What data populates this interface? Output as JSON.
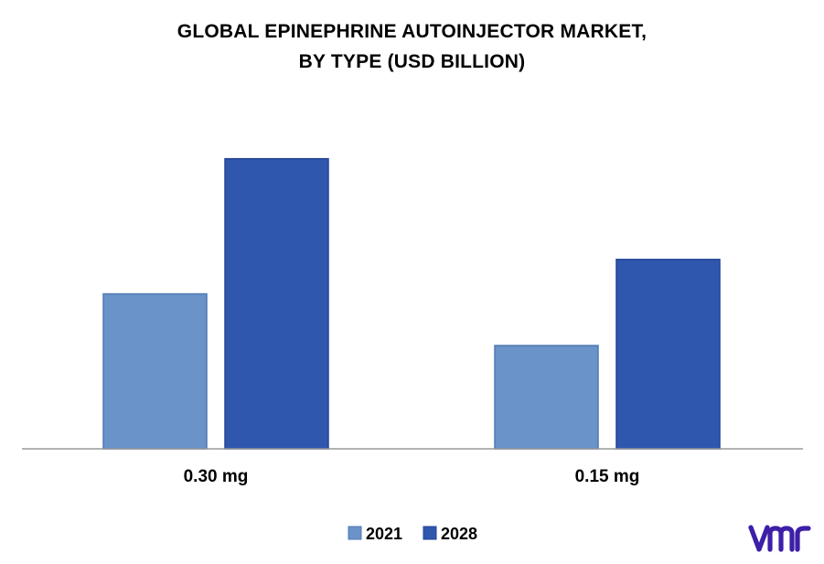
{
  "title": {
    "line1": "GLOBAL EPINEPHRINE AUTOINJECTOR MARKET,",
    "line2": "BY TYPE (USD BILLION)"
  },
  "colors": {
    "series_2021": "#6a93c9",
    "series_2021_edge": "#4f78b3",
    "series_2028": "#2f57ad",
    "series_2028_edge": "#234393",
    "axis": "#9a9a9a",
    "logo": "#3d1fa8"
  },
  "logo": {
    "icon": "vmr-logo-icon",
    "text": "vmr"
  },
  "chart_data": {
    "type": "bar",
    "title": "GLOBAL EPINEPHRINE AUTOINJECTOR MARKET, BY TYPE (USD BILLION)",
    "categories": [
      "0.30 mg",
      "0.15 mg"
    ],
    "series": [
      {
        "name": "2021",
        "values": [
          1.8,
          1.2
        ]
      },
      {
        "name": "2028",
        "values": [
          3.37,
          2.2
        ]
      }
    ],
    "ylim": [
      0,
      3.6
    ],
    "xlabel": "",
    "ylabel": "",
    "grid": false,
    "y_axis_visible": false,
    "legend_position": "bottom"
  }
}
